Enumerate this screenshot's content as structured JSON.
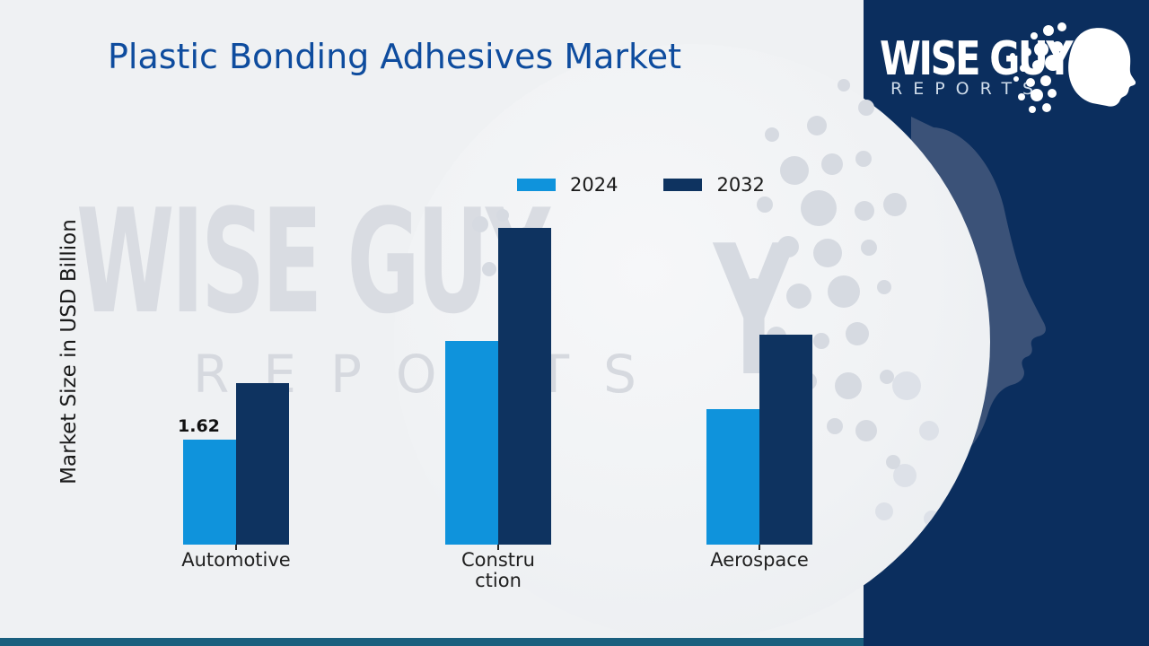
{
  "title": {
    "text": "Plastic Bonding Adhesives Market",
    "color": "#0e4c9e"
  },
  "brand": {
    "watermark_line1": "WISE GUY",
    "watermark_line2": "REPORTS",
    "logo_line1": "WISE GUY",
    "logo_line2": "REPORTS",
    "panel_color": "#0b2e5e",
    "bottom_strip_color": "#1a5f7e"
  },
  "chart_data": {
    "type": "bar",
    "title": "Plastic Bonding Adhesives Market",
    "ylabel": "Market Size in USD Billion",
    "unit": "USD Billion",
    "categories": [
      "Automotive",
      "Construction",
      "Aerospace"
    ],
    "category_label_lines": [
      [
        "Automotive"
      ],
      [
        "Constru",
        "ction"
      ],
      [
        "Aerospace"
      ]
    ],
    "series": [
      {
        "name": "2024",
        "color": "#0f93dc",
        "values": [
          1.62,
          3.15,
          2.1
        ]
      },
      {
        "name": "2032",
        "color": "#0e3360",
        "values": [
          2.5,
          4.9,
          3.25
        ]
      }
    ],
    "value_labels": [
      {
        "series": "2024",
        "category": "Automotive",
        "text": "1.62"
      }
    ],
    "legend": {
      "position": "top-center",
      "entries": [
        "2024",
        "2032"
      ]
    },
    "axes": {
      "y_axis_visible": false,
      "gridlines": false,
      "x_tick_marks": true
    }
  }
}
